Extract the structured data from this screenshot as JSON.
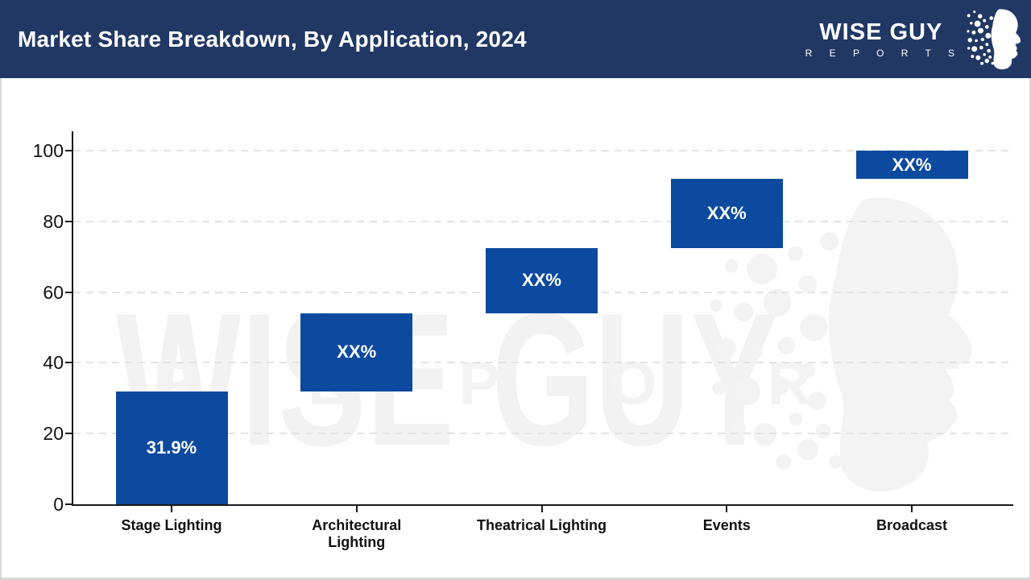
{
  "header": {
    "title": "Market Share Breakdown, By Application, 2024",
    "logo": {
      "line1": "WISE GUY",
      "line2": "R E P O R T S"
    }
  },
  "watermark": {
    "line1": "WISE GUY",
    "line2": "R E P O R T S"
  },
  "colors": {
    "header_bg": "#213864",
    "bar_blue": "#0c4a9f",
    "gridline": "#e3e3e3",
    "axis": "#1a1a1a",
    "bar_label": "#ffffff",
    "watermark": "#f2f2f2"
  },
  "chart_data": {
    "type": "bar",
    "subtype": "waterfall-floating-bars",
    "title": "Market Share Breakdown, By Application, 2024",
    "xlabel": "",
    "ylabel": "",
    "categories": [
      "Stage Lighting",
      "Architectural Lighting",
      "Theatrical Lighting",
      "Events",
      "Broadcast"
    ],
    "segments": [
      {
        "category": "Stage Lighting",
        "start": 0,
        "end": 31.9,
        "label": "31.9%"
      },
      {
        "category": "Architectural Lighting",
        "start": 31.9,
        "end": 54,
        "label": "XX%"
      },
      {
        "category": "Theatrical Lighting",
        "start": 54,
        "end": 72.5,
        "label": "XX%"
      },
      {
        "category": "Events",
        "start": 72.5,
        "end": 92,
        "label": "XX%"
      },
      {
        "category": "Broadcast",
        "start": 92,
        "end": 100,
        "label": "XX%"
      }
    ],
    "y_ticks": [
      0,
      20,
      40,
      60,
      80,
      100
    ],
    "ylim": [
      0,
      105
    ],
    "grid": "dashed-horizontal",
    "legend": false
  }
}
